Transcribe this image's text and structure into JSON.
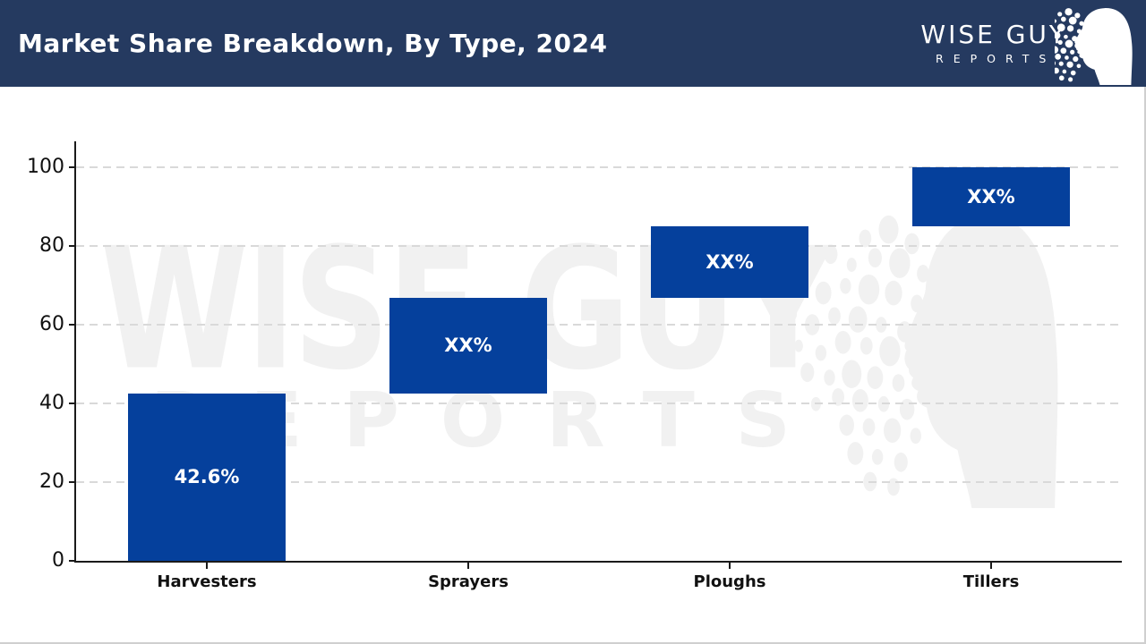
{
  "header": {
    "title": "Market Share Breakdown, By Type, 2024",
    "logo": {
      "line1": "WISE GUY",
      "line2": "REPORTS",
      "icon": "head-dots-icon"
    }
  },
  "watermark": {
    "line1": "WISE GUY",
    "line2": "REPORTS",
    "icon": "head-dots-icon"
  },
  "chart_data": {
    "type": "bar",
    "subtype": "waterfall",
    "title": "Market Share Breakdown, By Type, 2024",
    "categories": [
      "Harvesters",
      "Sprayers",
      "Ploughs",
      "Tillers"
    ],
    "segments": [
      {
        "category": "Harvesters",
        "start": 0,
        "end": 42.6,
        "label": "42.6%"
      },
      {
        "category": "Sprayers",
        "start": 42.6,
        "end": 66.8,
        "label": "XX%"
      },
      {
        "category": "Ploughs",
        "start": 66.8,
        "end": 85.0,
        "label": "XX%"
      },
      {
        "category": "Tillers",
        "start": 85.0,
        "end": 100.0,
        "label": "XX%"
      }
    ],
    "y_ticks": [
      0,
      20,
      40,
      60,
      80,
      100
    ],
    "ylim": [
      0,
      105
    ],
    "xlabel": "",
    "ylabel": "",
    "grid": "horizontal-dashed",
    "legend": "none",
    "colors": {
      "bar": "#05409c",
      "bar_label": "#ffffff",
      "axis": "#1a1a1a",
      "gridline": "#d9d9d9",
      "header_bg": "#253a60",
      "watermark": "#f1f1f1"
    }
  }
}
